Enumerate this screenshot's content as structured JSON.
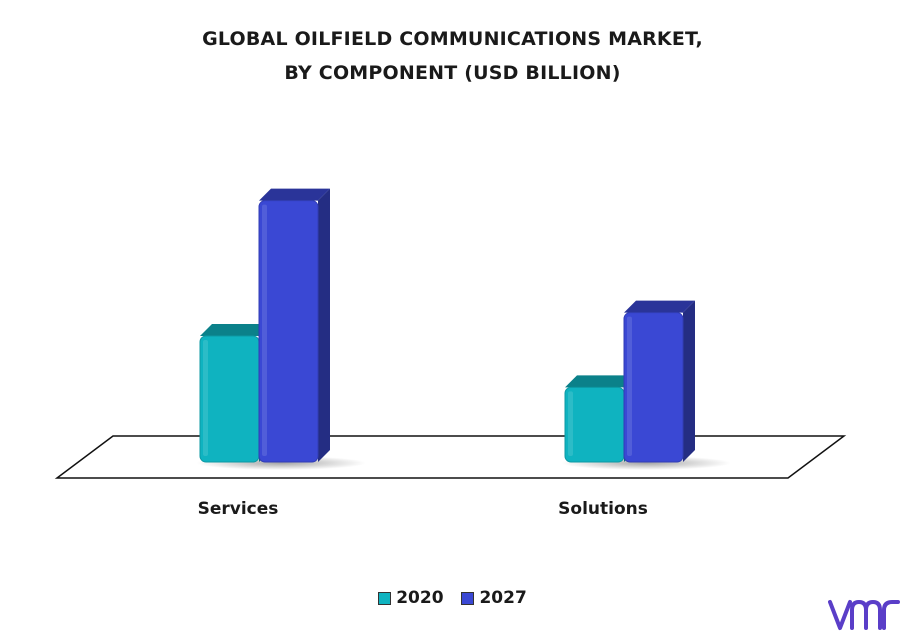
{
  "title": {
    "line1": "GLOBAL OILFIELD COMMUNICATIONS MARKET,",
    "line2": "BY COMPONENT (USD BILLION)"
  },
  "colors": {
    "series_2020": "#0fb3c0",
    "series_2027": "#3a48d4",
    "logo": "#5a3ec8"
  },
  "logo_icon": "vmr-logo",
  "chart_data": {
    "type": "bar",
    "style": "3d",
    "title": "GLOBAL OILFIELD COMMUNICATIONS MARKET, BY COMPONENT (USD BILLION)",
    "categories": [
      "Services",
      "Solutions"
    ],
    "series": [
      {
        "name": "2020",
        "values": [
          2.7,
          1.6
        ],
        "color": "#0fb3c0"
      },
      {
        "name": "2027",
        "values": [
          5.6,
          3.2
        ],
        "color": "#3a48d4"
      }
    ],
    "xlabel": "",
    "ylabel": "",
    "ylim": [
      0,
      6
    ],
    "grid": false,
    "legend_position": "bottom"
  }
}
